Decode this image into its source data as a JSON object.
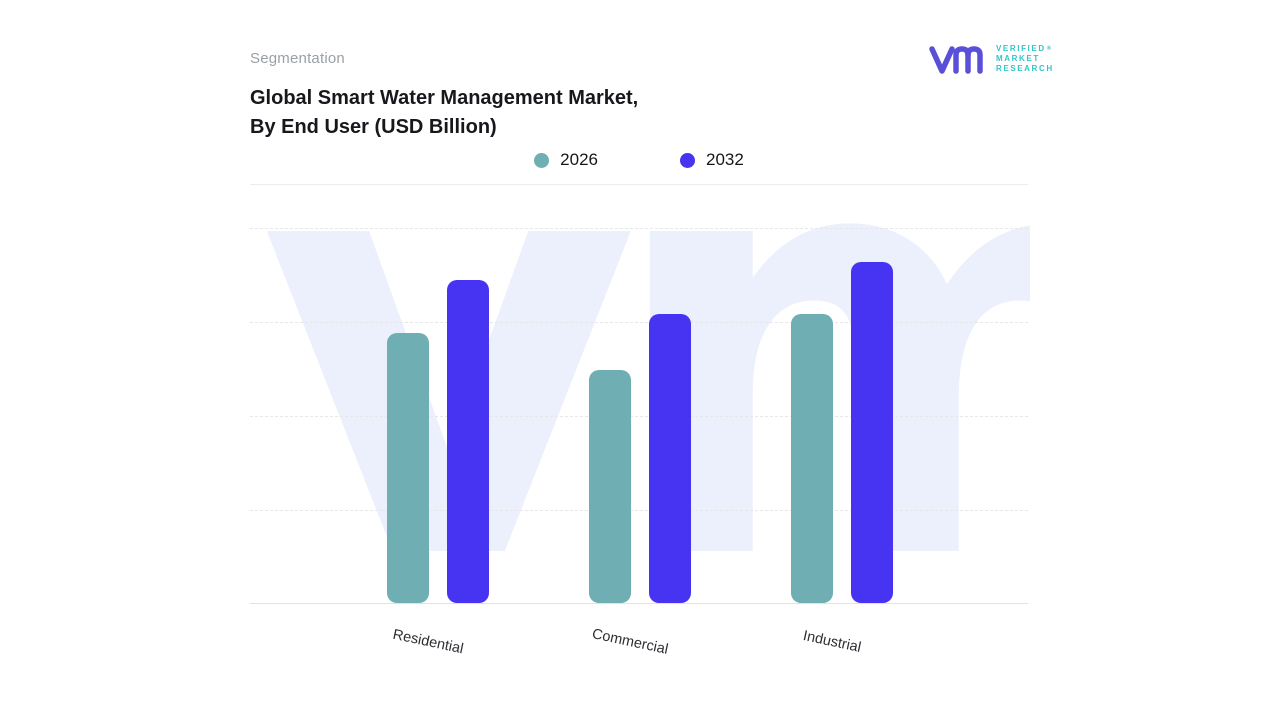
{
  "header": {
    "eyebrow": "Segmentation",
    "title_line1": "Global Smart Water Management Market,",
    "title_line2": "By End User (USD Billion)"
  },
  "logo": {
    "line1": "VERIFIED",
    "line2": "MARKET",
    "line3": "RESEARCH",
    "reg": "®",
    "monogram_color": "#5a50d8",
    "text_color": "#35c4c8"
  },
  "watermark_text": "vm",
  "legend": [
    {
      "label": "2026",
      "color": "#6FAFB3"
    },
    {
      "label": "2032",
      "color": "#4634F2"
    }
  ],
  "chart_data": {
    "type": "bar",
    "title": "Global Smart Water Management Market, By End User (USD Billion)",
    "categories": [
      "Residential",
      "Commercial",
      "Industrial"
    ],
    "series": [
      {
        "name": "2026",
        "color": "#6FAFB3",
        "values": [
          7.2,
          6.2,
          7.7
        ]
      },
      {
        "name": "2032",
        "color": "#4634F2",
        "values": [
          8.6,
          7.7,
          9.1
        ]
      }
    ],
    "xlabel": "",
    "ylabel": "USD Billion",
    "ylim": [
      0,
      10
    ],
    "y_axis_labels_visible": false,
    "grid": "horizontal-dashed",
    "legend_position": "top-center"
  }
}
